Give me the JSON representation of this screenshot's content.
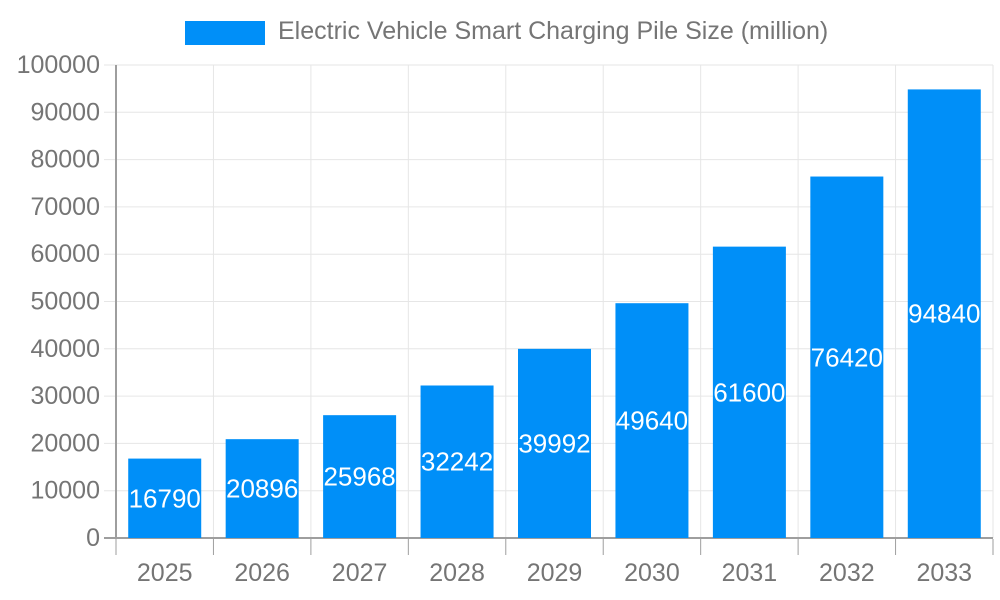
{
  "legend": {
    "label": "Electric Vehicle Smart Charging Pile Size (million)"
  },
  "chart_data": {
    "type": "bar",
    "title": "Electric Vehicle Smart Charging Pile Size (million)",
    "categories": [
      "2025",
      "2026",
      "2027",
      "2028",
      "2029",
      "2030",
      "2031",
      "2032",
      "2033"
    ],
    "values": [
      16790,
      20896,
      25968,
      32242,
      39992,
      49640,
      61600,
      76420,
      94840
    ],
    "bar_labels": [
      "16790",
      "20896",
      "25968",
      "32242",
      "39992",
      "49640",
      "61600",
      "76420",
      "94840"
    ],
    "y_tick_labels": [
      "0",
      "10000",
      "20000",
      "30000",
      "40000",
      "50000",
      "60000",
      "70000",
      "80000",
      "90000",
      "100000"
    ],
    "xlabel": "",
    "ylabel": "",
    "ylim": [
      0,
      100000
    ],
    "ytick_step": 10000,
    "grid": true,
    "legend_position": "top",
    "colors": {
      "bar": "#008FF8",
      "bar_value_label": "#ffffff",
      "axis_text": "#757575",
      "title_text": "#757575",
      "gridline": "#e6e6e6",
      "axis_line": "#9e9e9e",
      "background": "#ffffff"
    }
  }
}
